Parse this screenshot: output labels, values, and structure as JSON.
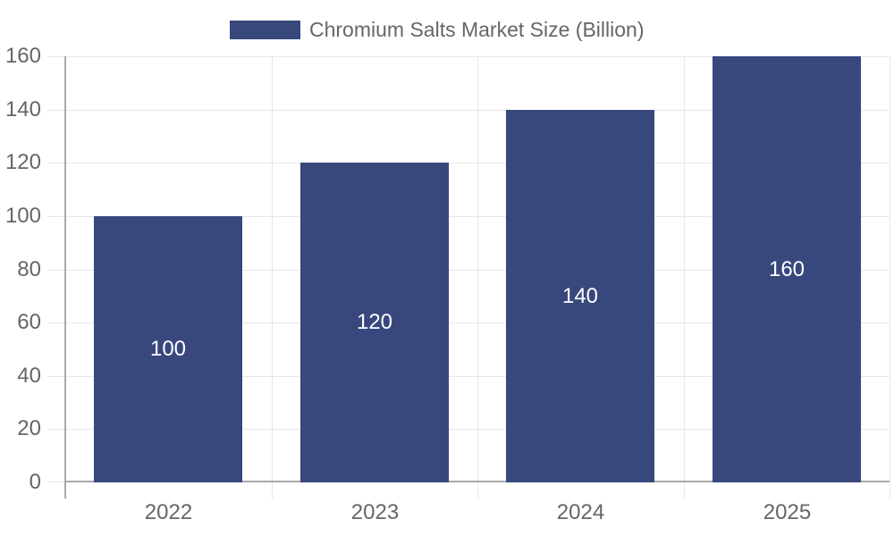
{
  "legend": {
    "label": "Chromium Salts Market Size (Billion)"
  },
  "colors": {
    "bar": "#38487d",
    "axis_line": "#a9a9a9",
    "grid_line": "#e7e7e7",
    "tick_text": "#666666",
    "value_text": "#ffffff",
    "background": "#ffffff"
  },
  "chart_data": {
    "type": "bar",
    "title": "Chromium Salts Market Size (Billion)",
    "series": [
      {
        "name": "Chromium Salts Market Size (Billion)",
        "values": [
          100,
          120,
          140,
          160
        ]
      }
    ],
    "categories": [
      "2022",
      "2023",
      "2024",
      "2025"
    ],
    "value_labels": [
      "100",
      "120",
      "140",
      "160"
    ],
    "y_ticks": [
      "0",
      "20",
      "40",
      "60",
      "80",
      "100",
      "120",
      "140",
      "160"
    ],
    "ylim": [
      0,
      160
    ],
    "xlabel": "",
    "ylabel": "",
    "grid": true,
    "legend_position": "top",
    "value_label_position": "inside-center"
  }
}
